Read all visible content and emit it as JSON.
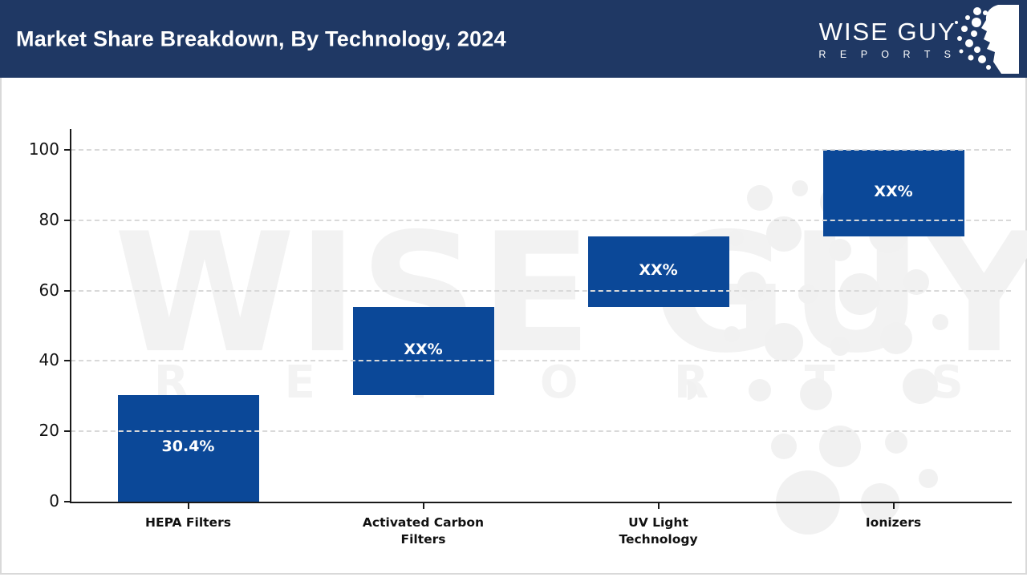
{
  "header": {
    "title": "Market Share Breakdown, By Technology, 2024",
    "logo": {
      "line1": "WISE GUY",
      "line2": "R E P O R T S"
    }
  },
  "watermark": {
    "line1": "WISE GUY",
    "line2": "R E P O R T S"
  },
  "chart_data": {
    "type": "bar",
    "subtype": "waterfall",
    "title": "Market Share Breakdown, By Technology, 2024",
    "categories": [
      "HEPA Filters",
      "Activated Carbon\nFilters",
      "UV Light\nTechnology",
      "Ionizers"
    ],
    "segments": [
      {
        "category": "HEPA Filters",
        "start": 0,
        "end": 30.4,
        "label": "30.4%"
      },
      {
        "category": "Activated Carbon Filters",
        "start": 30.4,
        "end": 55.4,
        "label": "XX%"
      },
      {
        "category": "UV Light Technology",
        "start": 55.4,
        "end": 75.4,
        "label": "XX%"
      },
      {
        "category": "Ionizers",
        "start": 75.4,
        "end": 100,
        "label": "XX%"
      }
    ],
    "yticks": [
      0,
      20,
      40,
      60,
      80,
      100
    ],
    "ylim": [
      0,
      106
    ],
    "xlabel": "",
    "ylabel": "",
    "grid": "horizontal-dashed",
    "legend": "none"
  },
  "colors": {
    "header_bg": "#1f3864",
    "bar": "#0b4898",
    "bar_label": "#ffffff",
    "grid": "#d9d9d9",
    "axis": "#1a1a1a",
    "watermark": "#f2f2f2",
    "page_border": "#d9d9d9"
  }
}
